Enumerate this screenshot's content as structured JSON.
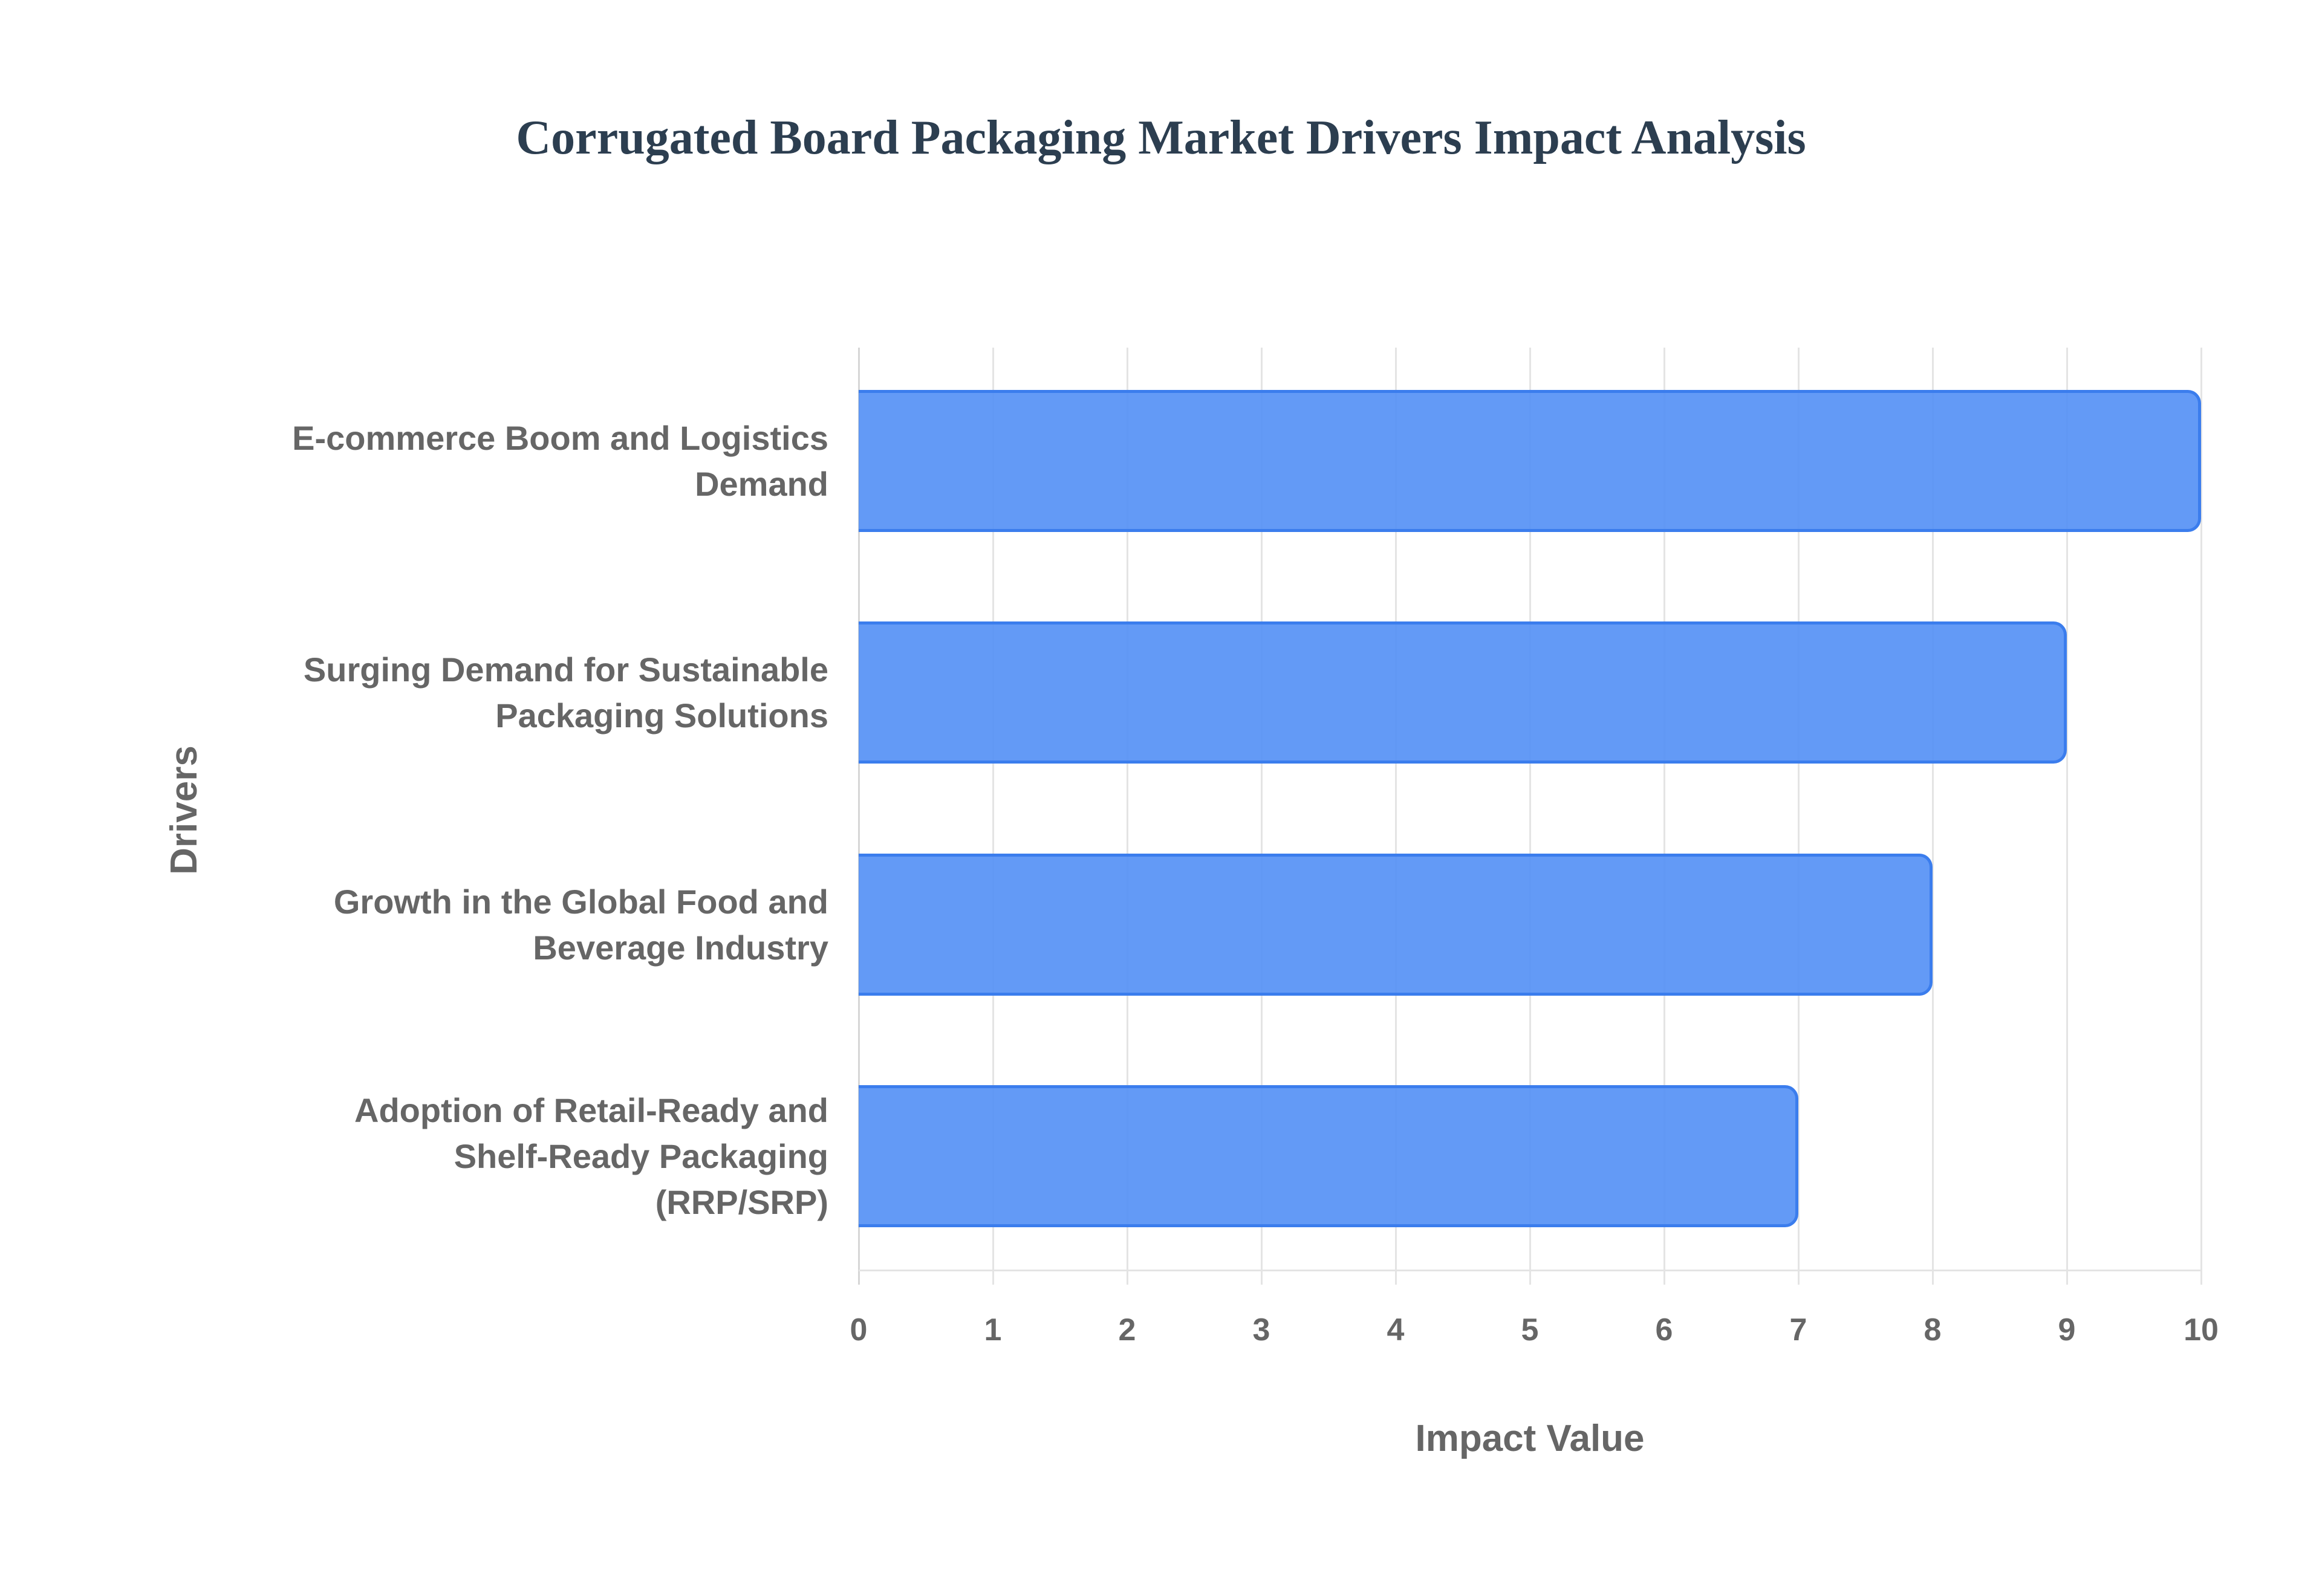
{
  "chart_data": {
    "type": "bar",
    "orientation": "horizontal",
    "title": "Corrugated Board Packaging Market Drivers Impact Analysis",
    "xlabel": "Impact Value",
    "ylabel": "Drivers",
    "categories": [
      "E-commerce Boom and Logistics Demand",
      "Surging Demand for Sustainable Packaging Solutions",
      "Growth in the Global Food and Beverage Industry",
      "Adoption of Retail-Ready and Shelf-Ready Packaging (RRP/SRP)"
    ],
    "values": [
      10,
      9,
      8,
      7
    ],
    "xlim": [
      0,
      10
    ],
    "x_ticks": [
      "0",
      "1",
      "2",
      "3",
      "4",
      "5",
      "6",
      "7",
      "8",
      "9",
      "10"
    ],
    "grid": true,
    "legend": "none",
    "colors": {
      "bar_fill": "#6299f5",
      "bar_border": "#3b7ded",
      "title": "#2c3e50",
      "axis_text": "#666666",
      "grid": "#e4e4e4"
    }
  },
  "labels": {
    "title": "Corrugated Board Packaging Market Drivers Impact Analysis",
    "x_axis_title": "Impact Value",
    "y_axis_title": "Drivers",
    "y_ticks": [
      [
        "E-commerce Boom and Logistics",
        "Demand"
      ],
      [
        "Surging Demand for Sustainable",
        "Packaging Solutions"
      ],
      [
        "Growth in the Global Food and",
        "Beverage Industry"
      ],
      [
        "Adoption of Retail-Ready and",
        "Shelf-Ready Packaging",
        "(RRP/SRP)"
      ]
    ],
    "x_ticks": [
      "0",
      "1",
      "2",
      "3",
      "4",
      "5",
      "6",
      "7",
      "8",
      "9",
      "10"
    ]
  }
}
